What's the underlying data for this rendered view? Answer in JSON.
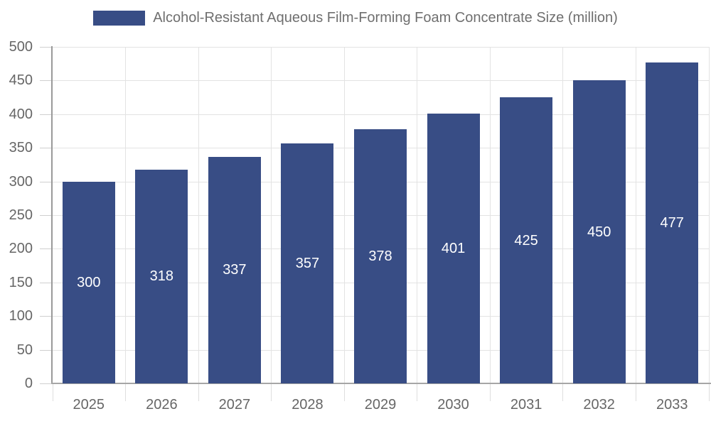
{
  "legend": {
    "label": "Alcohol-Resistant Aqueous Film-Forming Foam Concentrate Size (million)"
  },
  "chart_data": {
    "type": "bar",
    "title": "Alcohol-Resistant Aqueous Film-Forming Foam Concentrate Size (million)",
    "categories": [
      "2025",
      "2026",
      "2027",
      "2028",
      "2029",
      "2030",
      "2031",
      "2032",
      "2033"
    ],
    "values": [
      300,
      318,
      337,
      357,
      378,
      401,
      425,
      450,
      477
    ],
    "xlabel": "",
    "ylabel": "",
    "ylim": [
      0,
      500
    ],
    "yticks": [
      0,
      50,
      100,
      150,
      200,
      250,
      300,
      350,
      400,
      450,
      500
    ],
    "grid": true,
    "legend_position": "top",
    "value_labels": "inside-center"
  },
  "colors": {
    "bar": "#384D85",
    "value_label": "#ffffff",
    "grid": "#e3e3e3",
    "axis_y": "#9a9a9a",
    "axis_x": "#a6a6a6",
    "tick": "#cfcfcf",
    "axis_label": "#666666",
    "title": "#6f6f6f",
    "background": "#ffffff"
  }
}
